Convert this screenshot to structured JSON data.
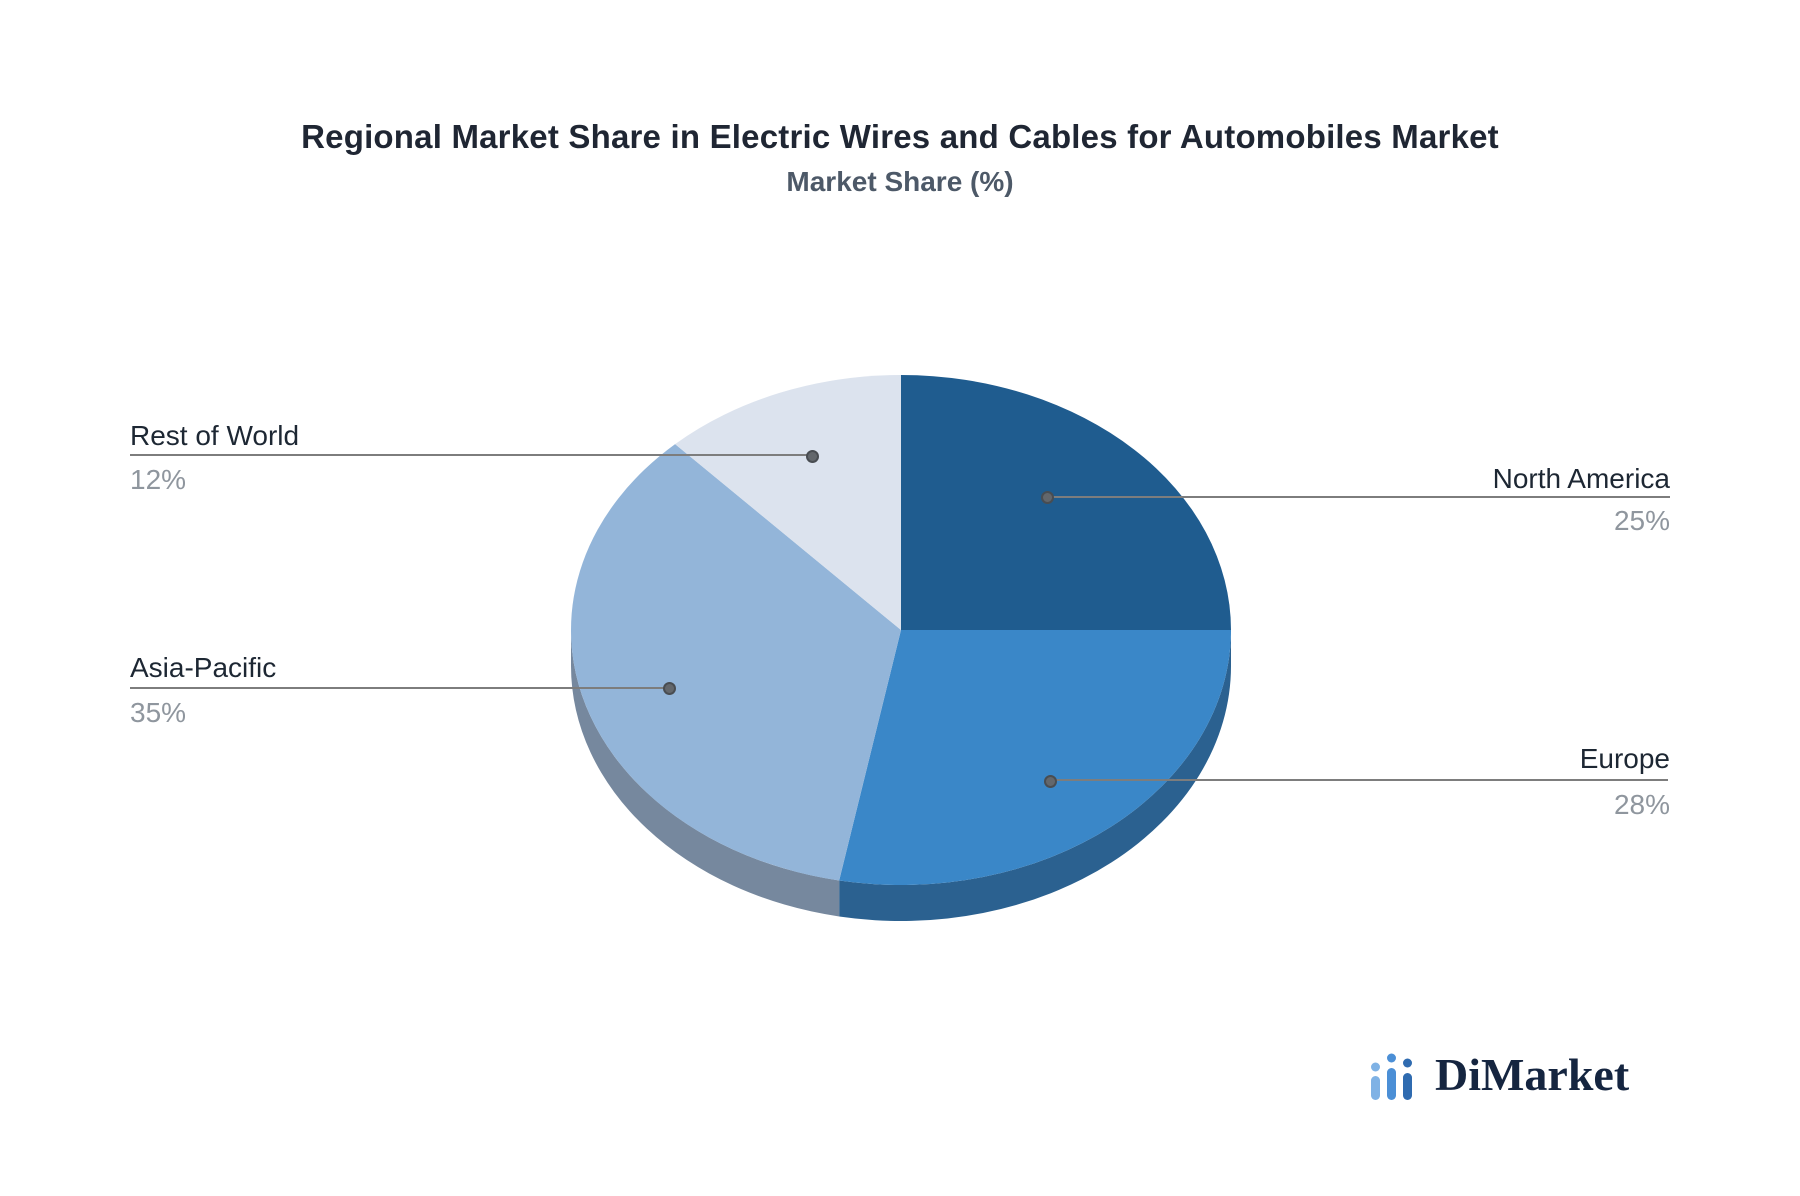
{
  "header": {
    "title": "Regional Market Share in Electric Wires and Cables for Automobiles Market",
    "subtitle": "Market Share (%)"
  },
  "chart_data": {
    "type": "pie",
    "style": "3d",
    "start_angle_deg": 0,
    "direction": "clockwise",
    "title": "Regional Market Share in Electric Wires and Cables for Automobiles Market",
    "subtitle": "Market Share (%)",
    "unit": "%",
    "labels": [
      "North America",
      "Europe",
      "Asia-Pacific",
      "Rest of World"
    ],
    "values": [
      25,
      28,
      35,
      12
    ],
    "colors": [
      "#1f5c8f",
      "#3a87c8",
      "#93b5d9",
      "#dce3ee"
    ],
    "side_colors": [
      "#174569",
      "#2b6190",
      "#76889e",
      "#aeb9c9"
    ],
    "legend_position": "callouts"
  },
  "callouts": [
    {
      "label": "Rest of World",
      "value": "12%",
      "side": "left"
    },
    {
      "label": "North America",
      "value": "25%",
      "side": "right"
    },
    {
      "label": "Asia-Pacific",
      "value": "35%",
      "side": "left"
    },
    {
      "label": "Europe",
      "value": "28%",
      "side": "right"
    }
  ],
  "logo": {
    "text": "DiMarket",
    "icon": "bar-chart-dots-icon"
  }
}
